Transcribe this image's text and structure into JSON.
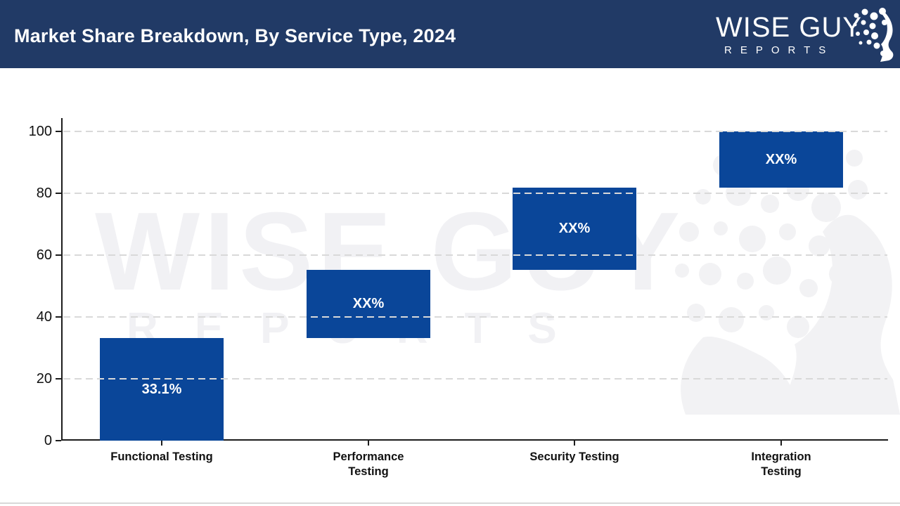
{
  "header": {
    "title": "Market Share Breakdown, By Service Type, 2024",
    "logo": {
      "line1": "WISE GUY",
      "line2": "REPORTS"
    }
  },
  "watermark": {
    "line1": "WISE GUY",
    "line2": "REPORTS"
  },
  "chart_data": {
    "type": "bar",
    "subtype": "waterfall",
    "title": "Market Share Breakdown, By Service Type, 2024",
    "categories": [
      "Functional Testing",
      "Performance\nTesting",
      "Security Testing",
      "Integration\nTesting"
    ],
    "segments": [
      {
        "category": "Functional Testing",
        "start": 0,
        "end": 33.1,
        "label": "33.1%"
      },
      {
        "category": "Performance Testing",
        "start": 33.1,
        "end": 55.2,
        "label": "XX%"
      },
      {
        "category": "Security Testing",
        "start": 55.2,
        "end": 81.8,
        "label": "XX%"
      },
      {
        "category": "Integration Testing",
        "start": 81.8,
        "end": 100,
        "label": "XX%"
      }
    ],
    "xlabel": "",
    "ylabel": "",
    "ylim": [
      0,
      100
    ],
    "yticks": [
      0,
      20,
      40,
      60,
      80,
      100
    ],
    "grid": "horizontal-dashed",
    "legend": "none",
    "bar_color": "#0a4699",
    "bar_label_color": "#ffffff",
    "header_color": "#213a66"
  }
}
